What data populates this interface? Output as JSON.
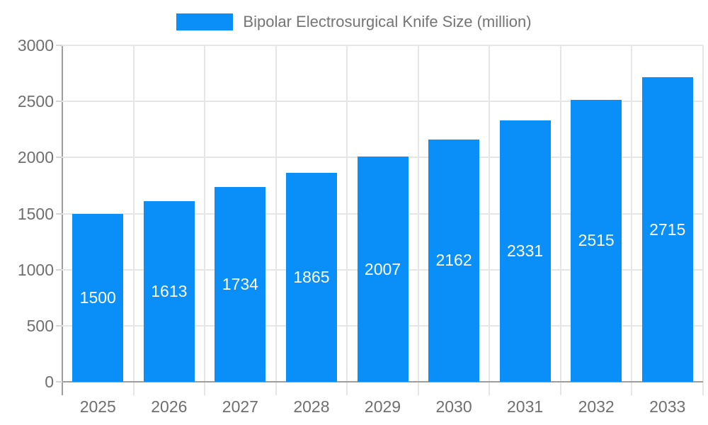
{
  "chart_data": {
    "type": "bar",
    "title": "",
    "categories": [
      "2025",
      "2026",
      "2027",
      "2028",
      "2029",
      "2030",
      "2031",
      "2032",
      "2033"
    ],
    "series": [
      {
        "name": "Bipolar Electrosurgical Knife Size (million)",
        "values": [
          1500,
          1613,
          1734,
          1865,
          2007,
          2162,
          2331,
          2515,
          2715
        ]
      }
    ],
    "data_labels_shown": true,
    "xlabel": "",
    "ylabel": "",
    "ylim": [
      0,
      3000
    ],
    "yticks": [
      0,
      500,
      1000,
      1500,
      2000,
      2500,
      3000
    ],
    "grid": "horizontal-and-vertical",
    "legend_position": "top-center",
    "legend_marker": "rectangle",
    "colors": {
      "bar": "#0a8ff8",
      "grid": "#e6e6e6",
      "axis": "#9e9e9e",
      "tick": "#d6d6d6",
      "axis_label": "#6f6f6f",
      "legend_text": "#757575",
      "value_label": "#ffffff",
      "background": "#ffffff"
    }
  }
}
